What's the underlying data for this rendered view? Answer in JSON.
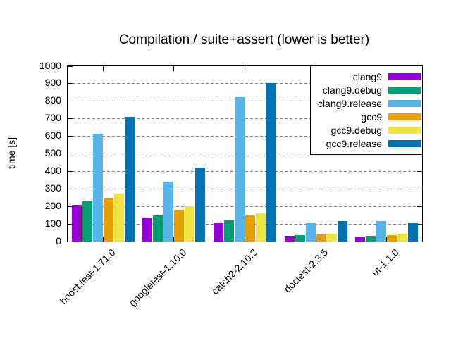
{
  "chart_data": {
    "type": "bar",
    "title": "Compilation / suite+assert (lower is better)",
    "ylabel": "time [s]",
    "xlabel": "",
    "ylim": [
      0,
      1000
    ],
    "ytick_step": 100,
    "grid": true,
    "grid_style": "dashed",
    "legend_position": "top-right-inside",
    "categories": [
      "boost.test-1.71.0",
      "googletest-1.10.0",
      "catch2-2.10.2",
      "doctest-2.3.5",
      "ut-1.1.0"
    ],
    "series": [
      {
        "name": "clang9",
        "color": "#9400d3",
        "values": [
          210,
          135,
          110,
          33,
          28
        ]
      },
      {
        "name": "clang9.debug",
        "color": "#009e73",
        "values": [
          230,
          150,
          120,
          37,
          34
        ]
      },
      {
        "name": "clang9.release",
        "color": "#56b4e9",
        "values": [
          615,
          340,
          825,
          107,
          115
        ]
      },
      {
        "name": "gcc9",
        "color": "#e69f00",
        "values": [
          248,
          180,
          150,
          40,
          37
        ]
      },
      {
        "name": "gcc9.debug",
        "color": "#f0e442",
        "values": [
          272,
          200,
          160,
          43,
          45
        ]
      },
      {
        "name": "gcc9.release",
        "color": "#0072b2",
        "values": [
          710,
          420,
          905,
          118,
          108
        ]
      }
    ]
  },
  "colors": {
    "background": "#ffffff",
    "axis": "#000000",
    "grid": "#848484",
    "text": "#000000"
  }
}
